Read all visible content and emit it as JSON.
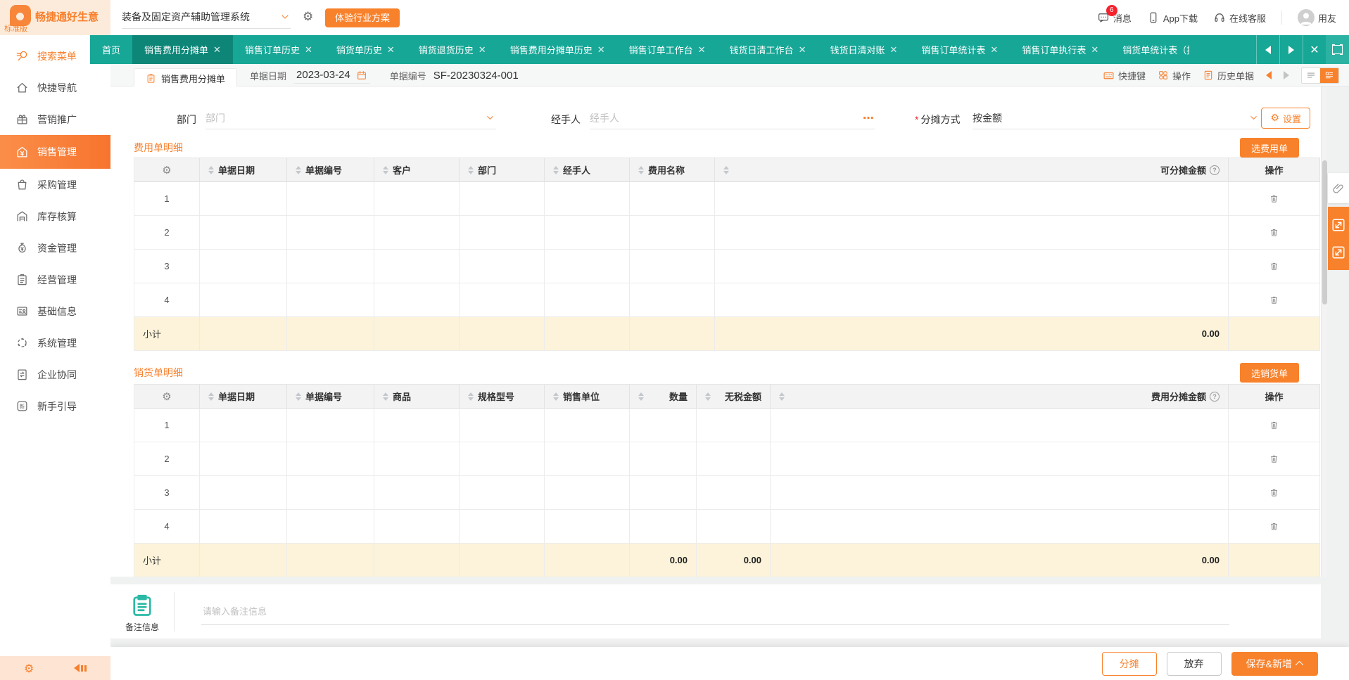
{
  "colors": {
    "accent": "#f8822c",
    "teal": "#17a797",
    "tab_active": "#0d8678",
    "subtotal_bg": "#fcf3da",
    "badge": "#f5222d",
    "sidebar_active": "#f7742e"
  },
  "topbar": {
    "brand": "畅捷通好生意",
    "edition": "标准版",
    "system_select": "装备及固定资产辅助管理系统",
    "trial_button": "体验行业方案",
    "messages": "消息",
    "messages_badge": "6",
    "app_download": "App下载",
    "online_service": "在线客服",
    "user": "用友"
  },
  "tabbar": {
    "tabs": [
      {
        "label": "首页",
        "active": false,
        "closable": false
      },
      {
        "label": "销售费用分摊单",
        "active": true,
        "closable": true
      },
      {
        "label": "销售订单历史",
        "active": false,
        "closable": true
      },
      {
        "label": "销货单历史",
        "active": false,
        "closable": true
      },
      {
        "label": "销货退货历史",
        "active": false,
        "closable": true
      },
      {
        "label": "销售费用分摊单历史",
        "active": false,
        "closable": true
      },
      {
        "label": "销售订单工作台",
        "active": false,
        "closable": true
      },
      {
        "label": "钱货日清工作台",
        "active": false,
        "closable": true
      },
      {
        "label": "钱货日清对账",
        "active": false,
        "closable": true
      },
      {
        "label": "销售订单统计表",
        "active": false,
        "closable": true
      },
      {
        "label": "销售订单执行表",
        "active": false,
        "closable": true
      },
      {
        "label": "销货单统计表（按",
        "active": false,
        "closable": false,
        "truncated": true
      }
    ]
  },
  "sidebar": {
    "items": [
      {
        "id": "search",
        "label": "搜索菜单",
        "accent": true
      },
      {
        "id": "nav",
        "label": "快捷导航"
      },
      {
        "id": "marketing",
        "label": "营销推广"
      },
      {
        "id": "sales",
        "label": "销售管理",
        "active": true
      },
      {
        "id": "purchase",
        "label": "采购管理"
      },
      {
        "id": "inventory",
        "label": "库存核算"
      },
      {
        "id": "funds",
        "label": "资金管理"
      },
      {
        "id": "operation",
        "label": "经营管理"
      },
      {
        "id": "basic",
        "label": "基础信息"
      },
      {
        "id": "system",
        "label": "系统管理"
      },
      {
        "id": "collab",
        "label": "企业协同"
      },
      {
        "id": "guide",
        "label": "新手引导"
      }
    ]
  },
  "dochead": {
    "doc_tab": "销售费用分摊单",
    "date_label": "单据日期",
    "date_value": "2023-03-24",
    "no_label": "单据编号",
    "no_value": "SF-20230324-001",
    "shortcuts": "快捷键",
    "actions": "操作",
    "history": "历史单据"
  },
  "form": {
    "dept_label": "部门",
    "dept_placeholder": "部门",
    "handler_label": "经手人",
    "handler_placeholder": "经手人",
    "method_label": "分摊方式",
    "method_value": "按金额",
    "settings_button": "设置"
  },
  "sections": {
    "expense": {
      "title": "费用单明细",
      "select_button": "选费用单",
      "columns": [
        "单据日期",
        "单据编号",
        "客户",
        "部门",
        "经手人",
        "费用名称"
      ],
      "amount_column": "可分摊金额",
      "op_column": "操作",
      "row_numbers": [
        "1",
        "2",
        "3",
        "4"
      ],
      "subtotal_label": "小计",
      "subtotal_amount": "0.00"
    },
    "sales": {
      "title": "销货单明细",
      "select_button": "选销货单",
      "columns": [
        "单据日期",
        "单据编号",
        "商品",
        "规格型号",
        "销售单位"
      ],
      "qty_column": "数量",
      "notax_column": "无税金额",
      "amount_column": "费用分摊金额",
      "op_column": "操作",
      "row_numbers": [
        "1",
        "2",
        "3",
        "4"
      ],
      "subtotal_label": "小计",
      "subtotal_qty": "0.00",
      "subtotal_notax": "0.00",
      "subtotal_amount": "0.00"
    }
  },
  "remark": {
    "label": "备注信息",
    "placeholder": "请输入备注信息"
  },
  "footer": {
    "share_button": "分摊",
    "abandon_button": "放弃",
    "save_button": "保存&新增"
  }
}
